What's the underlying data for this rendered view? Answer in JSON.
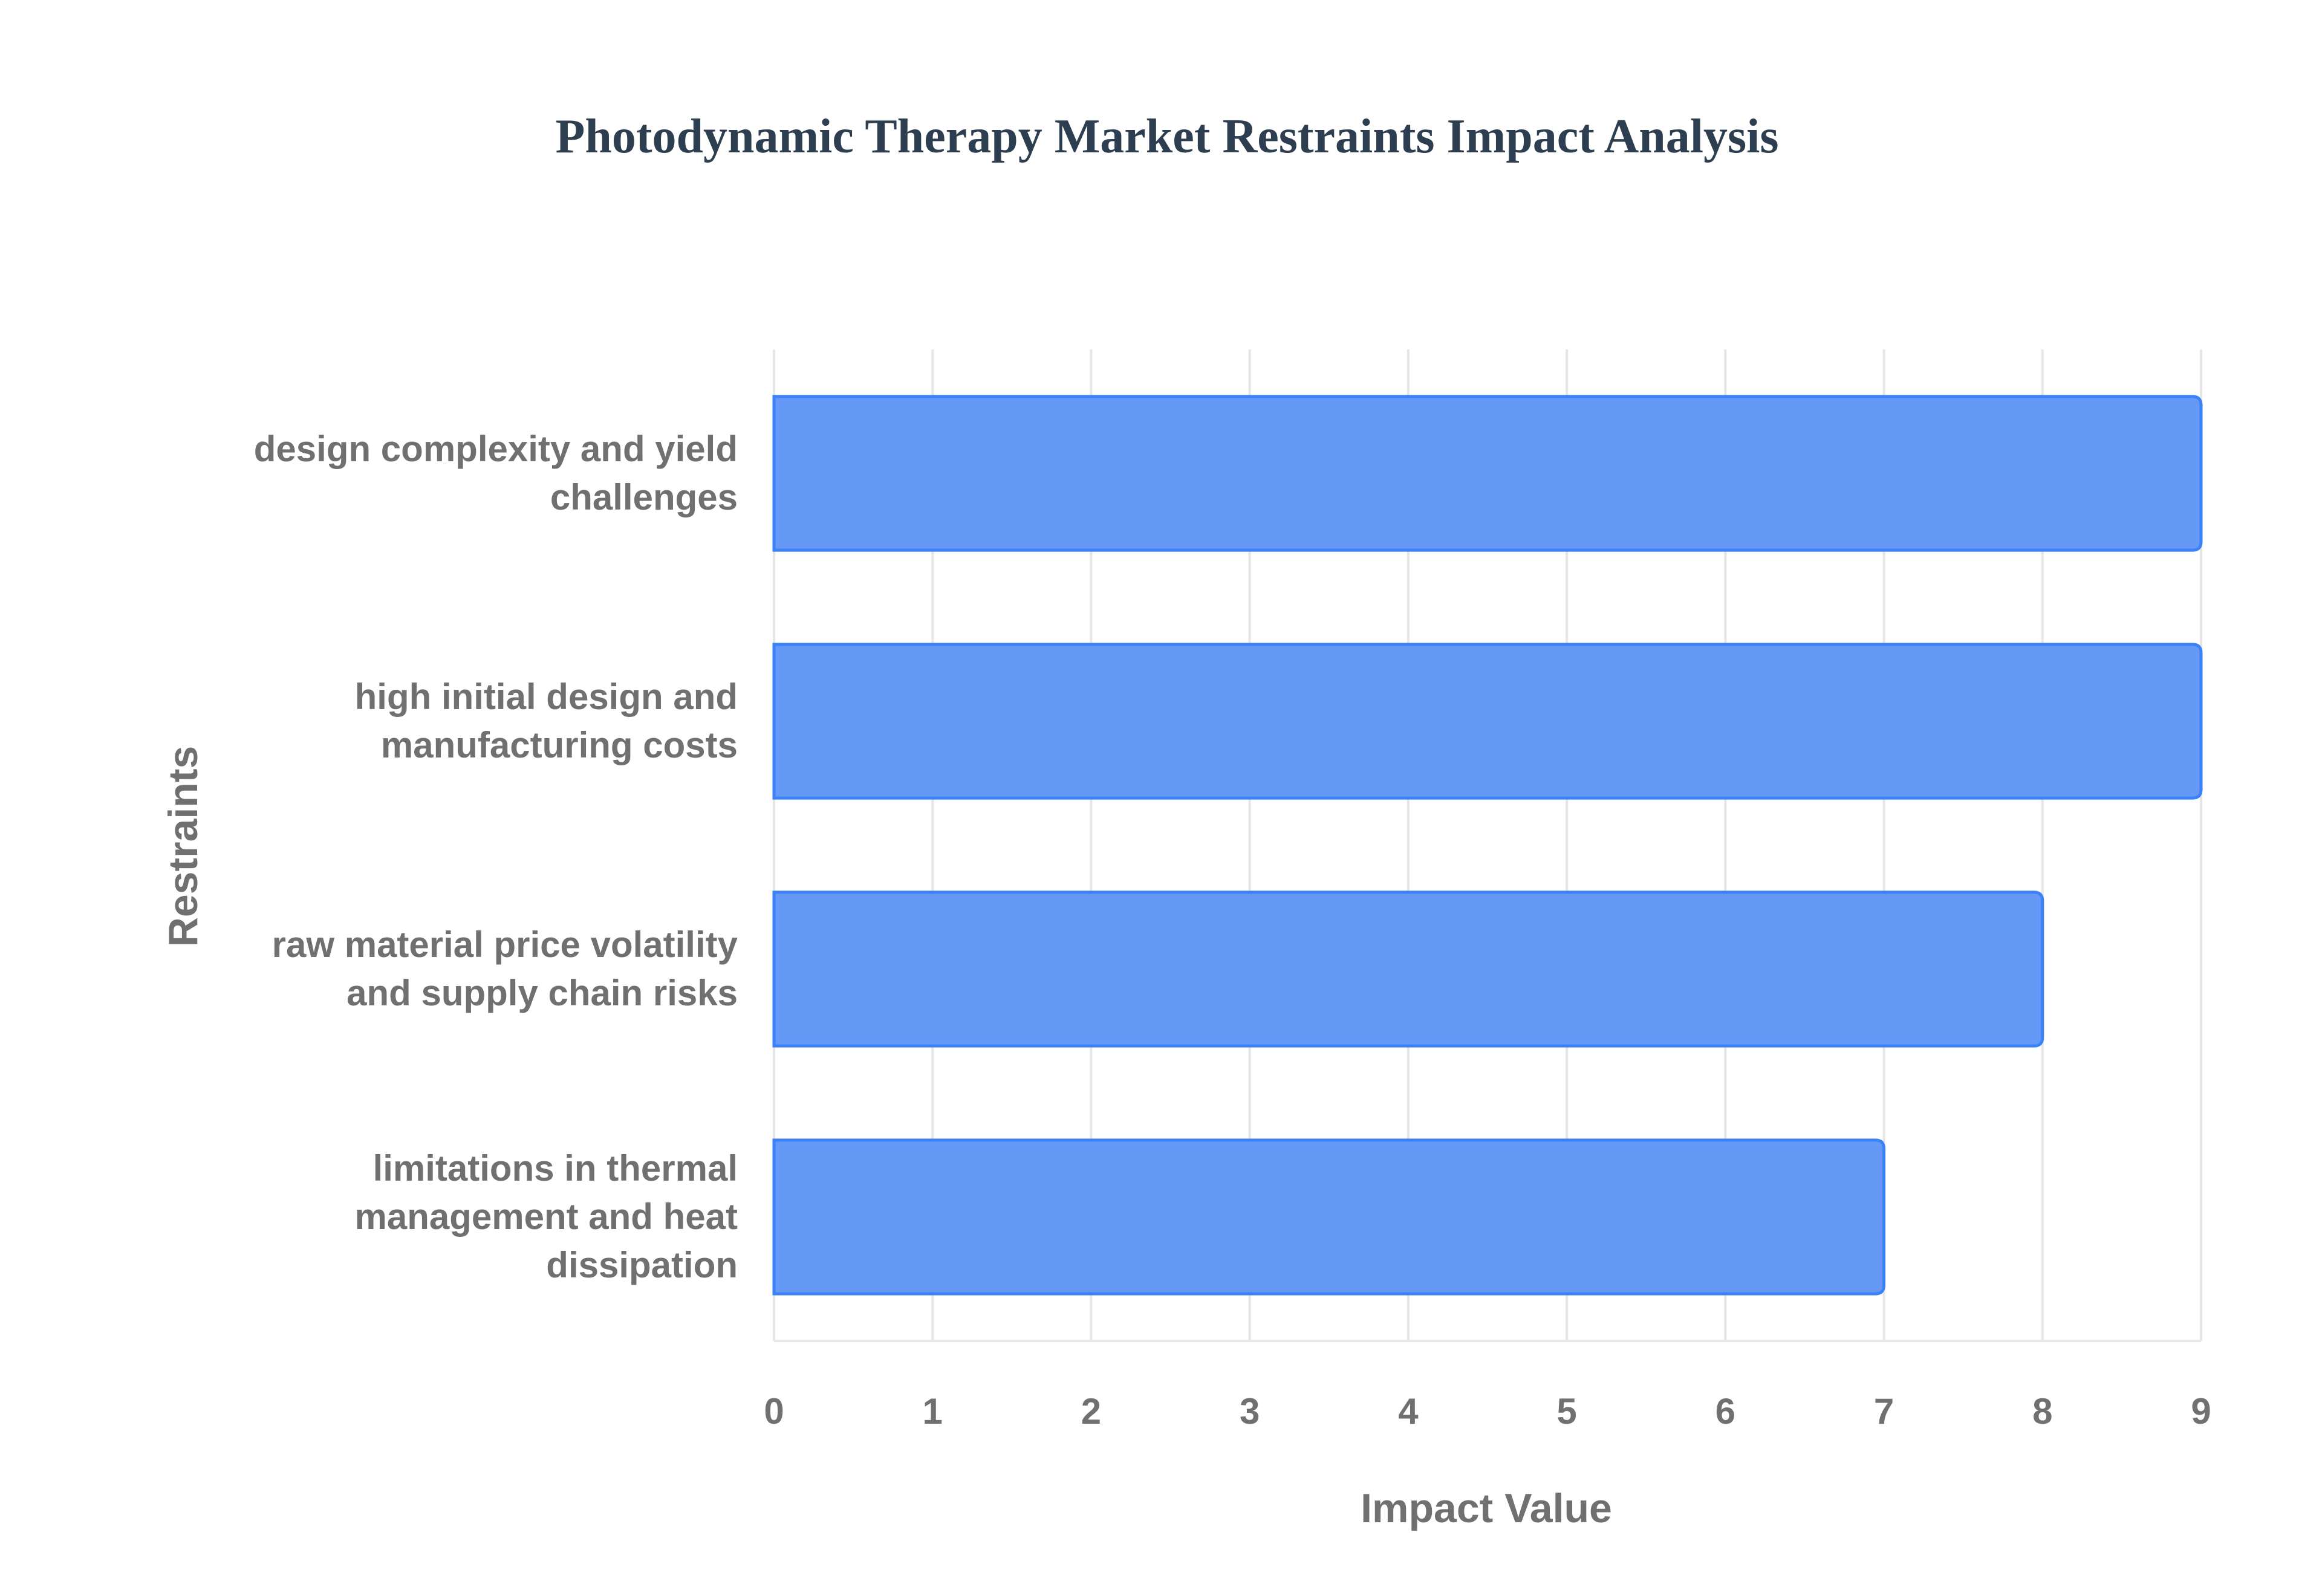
{
  "chart_data": {
    "type": "bar",
    "orientation": "horizontal",
    "title": "Photodynamic Therapy Market Restraints Impact Analysis",
    "xlabel": "Impact Value",
    "ylabel": "Restraints",
    "categories": [
      [
        "design complexity and yield",
        "challenges"
      ],
      [
        "high initial design and",
        "manufacturing costs"
      ],
      [
        "raw material price volatility",
        "and supply chain risks"
      ],
      [
        "limitations in thermal",
        "management and heat",
        "dissipation"
      ]
    ],
    "values": [
      9,
      9,
      8,
      7
    ],
    "xlim": [
      0,
      9
    ],
    "xticks": [
      "0",
      "1",
      "2",
      "3",
      "4",
      "5",
      "6",
      "7",
      "8",
      "9"
    ],
    "grid": true,
    "legend": "none",
    "colors": {
      "bar_fill": "#6699f5",
      "bar_stroke": "#3b82f6",
      "grid": "#e6e6e6",
      "text": "#707070",
      "title": "#2c3e50"
    }
  }
}
